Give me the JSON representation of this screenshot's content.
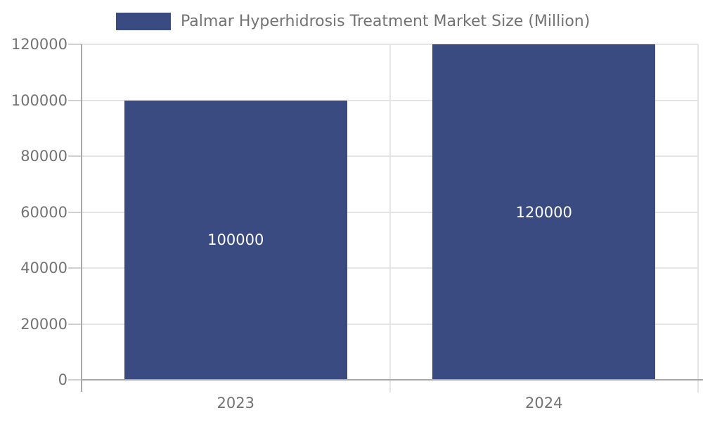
{
  "chart_data": {
    "type": "bar",
    "title": "Palmar Hyperhidrosis Treatment Market Size (Million)",
    "categories": [
      "2023",
      "2024"
    ],
    "values": [
      100000,
      120000
    ],
    "bar_value_labels": [
      "100000",
      "120000"
    ],
    "ytick_labels": [
      "0",
      "20000",
      "40000",
      "60000",
      "80000",
      "100000",
      "120000"
    ],
    "yticks": [
      0,
      20000,
      40000,
      60000,
      80000,
      100000,
      120000
    ],
    "ylim": [
      0,
      120000
    ],
    "ytick_step": 20000,
    "xlabel": "",
    "ylabel": "",
    "grid": true,
    "legend_position": "top-center",
    "colors": {
      "bar": "#394B80",
      "bar_label": "#FFFFFF",
      "tick_text": "#737373",
      "axis_line": "#A8A8A8",
      "gridline": "#E5E5E5",
      "tick_mark": "#D0D0D0",
      "background": "#FFFFFF"
    }
  }
}
